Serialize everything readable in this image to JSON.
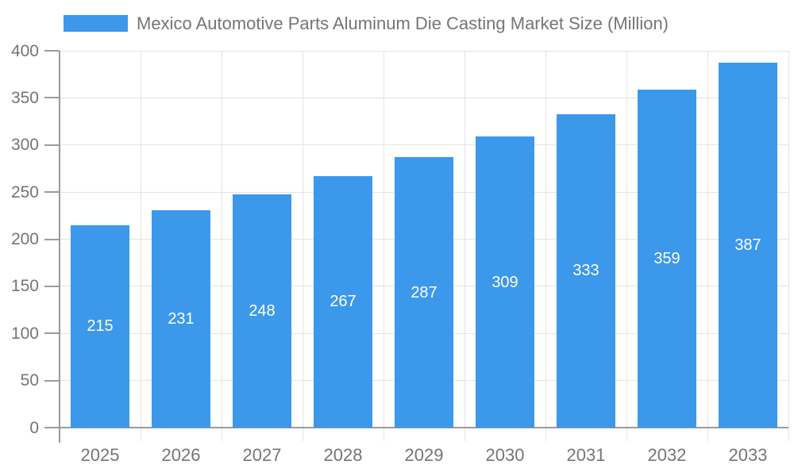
{
  "colors": {
    "bar": "#3B98EB",
    "grid": "#E3E3E3",
    "axis": "#9B9B9B",
    "text": "#757575",
    "bar_label": "#FFFFFF",
    "background": "#FFFFFF"
  },
  "legend": {
    "label": "Mexico Automotive Parts Aluminum Die Casting Market Size (Million)",
    "swatch_color": "#3B98EB"
  },
  "chart_data": {
    "type": "bar",
    "title": "Mexico Automotive Parts Aluminum Die Casting Market Size (Million)",
    "categories": [
      "2025",
      "2026",
      "2027",
      "2028",
      "2029",
      "2030",
      "2031",
      "2032",
      "2033"
    ],
    "values": [
      215,
      231,
      248,
      267,
      287,
      309,
      333,
      359,
      387
    ],
    "xlabel": "",
    "ylabel": "",
    "ylim": [
      0,
      400
    ],
    "yticks": [
      0,
      50,
      100,
      150,
      200,
      250,
      300,
      350,
      400
    ],
    "grid": true,
    "legend_position": "top"
  }
}
